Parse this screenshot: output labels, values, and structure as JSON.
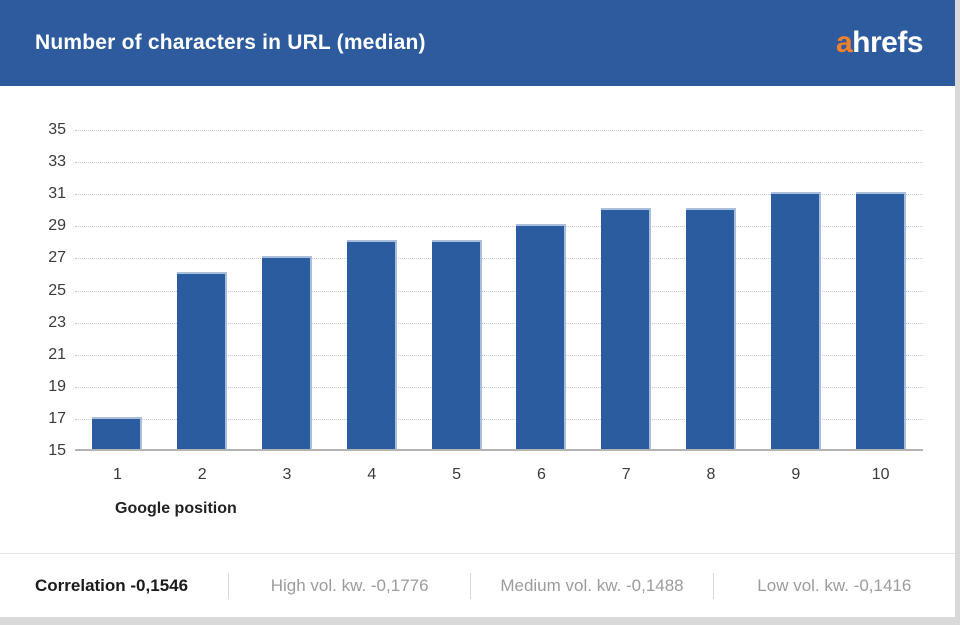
{
  "header": {
    "title": "Number of characters in URL (median)",
    "logo_prefix": "a",
    "logo_rest": "hrefs"
  },
  "chart_data": {
    "type": "bar",
    "title": "Number of characters in URL (median)",
    "categories": [
      "1",
      "2",
      "3",
      "4",
      "5",
      "6",
      "7",
      "8",
      "9",
      "10"
    ],
    "values": [
      17,
      26,
      27,
      28,
      28,
      29,
      30,
      30,
      31,
      31
    ],
    "xlabel": "Google position",
    "ylabel": "",
    "ylim": [
      15,
      35
    ],
    "ytick_step": 2,
    "grid": "horizontal-dotted",
    "legend": "none",
    "bar_color": "#2a5c9f"
  },
  "footer": {
    "items": [
      {
        "label": "Correlation -0,1546"
      },
      {
        "label": "High vol. kw. -0,1776"
      },
      {
        "label": "Medium vol. kw. -0,1488"
      },
      {
        "label": "Low vol. kw. -0,1416"
      }
    ]
  },
  "colors": {
    "header_bg": "#2e5b9d",
    "bar": "#2a5c9f",
    "logo_orange": "#f1802d",
    "muted_text": "#9c9c9c",
    "gridline": "#c9c9c9",
    "axis_line": "#b3b3b3",
    "page_edge": "#d9d9d9"
  }
}
